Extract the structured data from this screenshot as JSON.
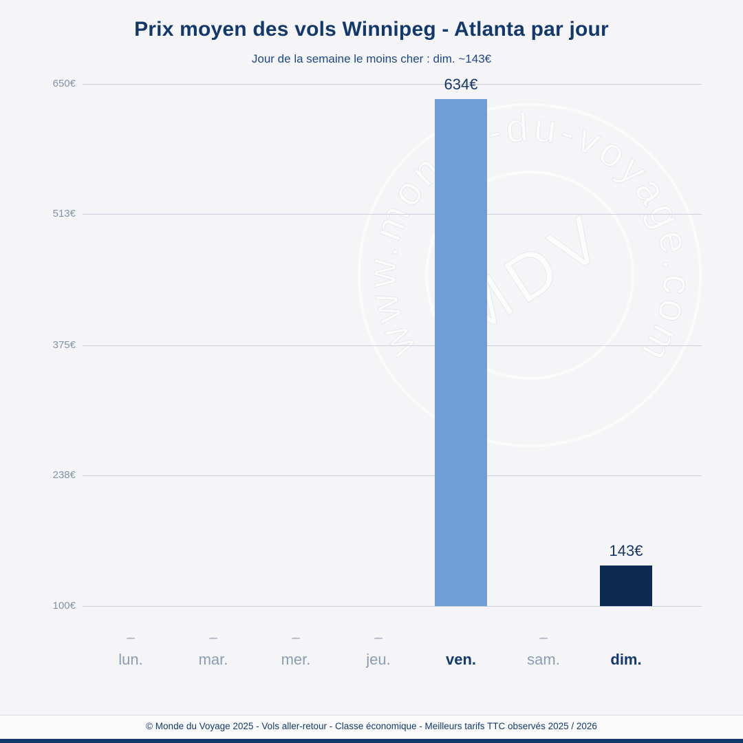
{
  "header": {
    "title": "Prix moyen des vols Winnipeg - Atlanta par jour",
    "subtitle": "Jour de la semaine le moins cher : dim. ~143€"
  },
  "chart_data": {
    "type": "bar",
    "title": "Prix moyen des vols Winnipeg - Atlanta par jour",
    "subtitle": "Jour de la semaine le moins cher : dim. ~143€",
    "categories": [
      "lun.",
      "mar.",
      "mer.",
      "jeu.",
      "ven.",
      "sam.",
      "dim."
    ],
    "values": [
      null,
      null,
      null,
      null,
      634,
      null,
      143
    ],
    "value_labels": [
      null,
      null,
      null,
      null,
      "634€",
      null,
      "143€"
    ],
    "bar_colors": [
      null,
      null,
      null,
      null,
      "#6f9ed7",
      null,
      "#0e2a52"
    ],
    "no_data_marker": "–",
    "ylim": [
      100,
      650
    ],
    "yticks": [
      650,
      513,
      375,
      238,
      100
    ],
    "ytick_labels": [
      "650€",
      "513€",
      "375€",
      "238€",
      "100€"
    ],
    "xlabel": "",
    "ylabel": "",
    "grid": true,
    "legend": false
  },
  "watermark": {
    "ring_text": "www.monde-du-voyage.com",
    "center_text": "MDV"
  },
  "footer": {
    "text": "© Monde du Voyage 2025 - Vols aller-retour - Classe économique - Meilleurs tarifs TTC observés 2025 / 2026"
  },
  "colors": {
    "navy": "#13386c",
    "light_blue_bar": "#6f9ed7",
    "dark_navy_bar": "#0e2a52",
    "grid": "#c9d1dd",
    "muted_label": "#8c9cb2",
    "background": "#f5f5f7"
  }
}
